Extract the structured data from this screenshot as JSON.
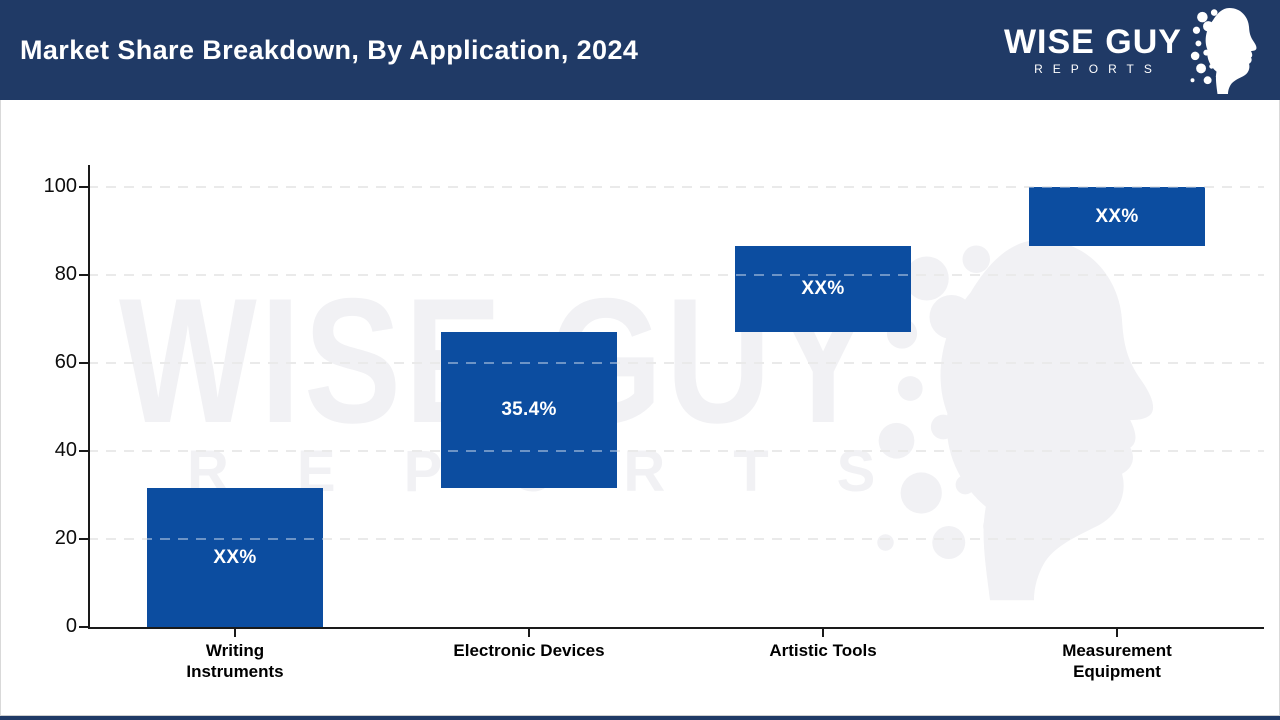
{
  "header": {
    "title": "Market Share Breakdown, By Application, 2024",
    "logo": {
      "wordmark": "WISE GUY",
      "reports": "REPORTS"
    },
    "bg_color": "#203a66"
  },
  "watermark": {
    "wordmark": "WISE GUY",
    "reports": "REPORTS"
  },
  "footer": {
    "bg_color": "#203a66"
  },
  "chart_data": {
    "type": "bar",
    "subtype": "waterfall-floating-bars",
    "title": "Market Share Breakdown, By Application, 2024",
    "categories": [
      "Writing Instruments",
      "Electronic Devices",
      "Artistic Tools",
      "Measurement Equipment"
    ],
    "category_label_lines": [
      [
        "Writing",
        "Instruments"
      ],
      [
        "Electronic Devices"
      ],
      [
        "Artistic Tools"
      ],
      [
        "Measurement",
        "Equipment"
      ]
    ],
    "segments": [
      {
        "category": "Writing Instruments",
        "start": 0,
        "end": 31.6,
        "label": "XX%"
      },
      {
        "category": "Electronic Devices",
        "start": 31.6,
        "end": 67.0,
        "label": "35.4%"
      },
      {
        "category": "Artistic Tools",
        "start": 67.0,
        "end": 86.6,
        "label": "XX%"
      },
      {
        "category": "Measurement Equipment",
        "start": 86.6,
        "end": 100,
        "label": "XX%"
      }
    ],
    "xlabel": "",
    "ylabel": "",
    "ylim": [
      0,
      100
    ],
    "yticks": [
      0,
      20,
      40,
      60,
      80,
      100
    ],
    "grid": "horizontal-dashed",
    "legend": "none",
    "bar_color": "#0c4da0",
    "bar_label_color": "#ffffff",
    "grid_color": "#dcdcdc",
    "axis_color": "#1a1a1a"
  }
}
